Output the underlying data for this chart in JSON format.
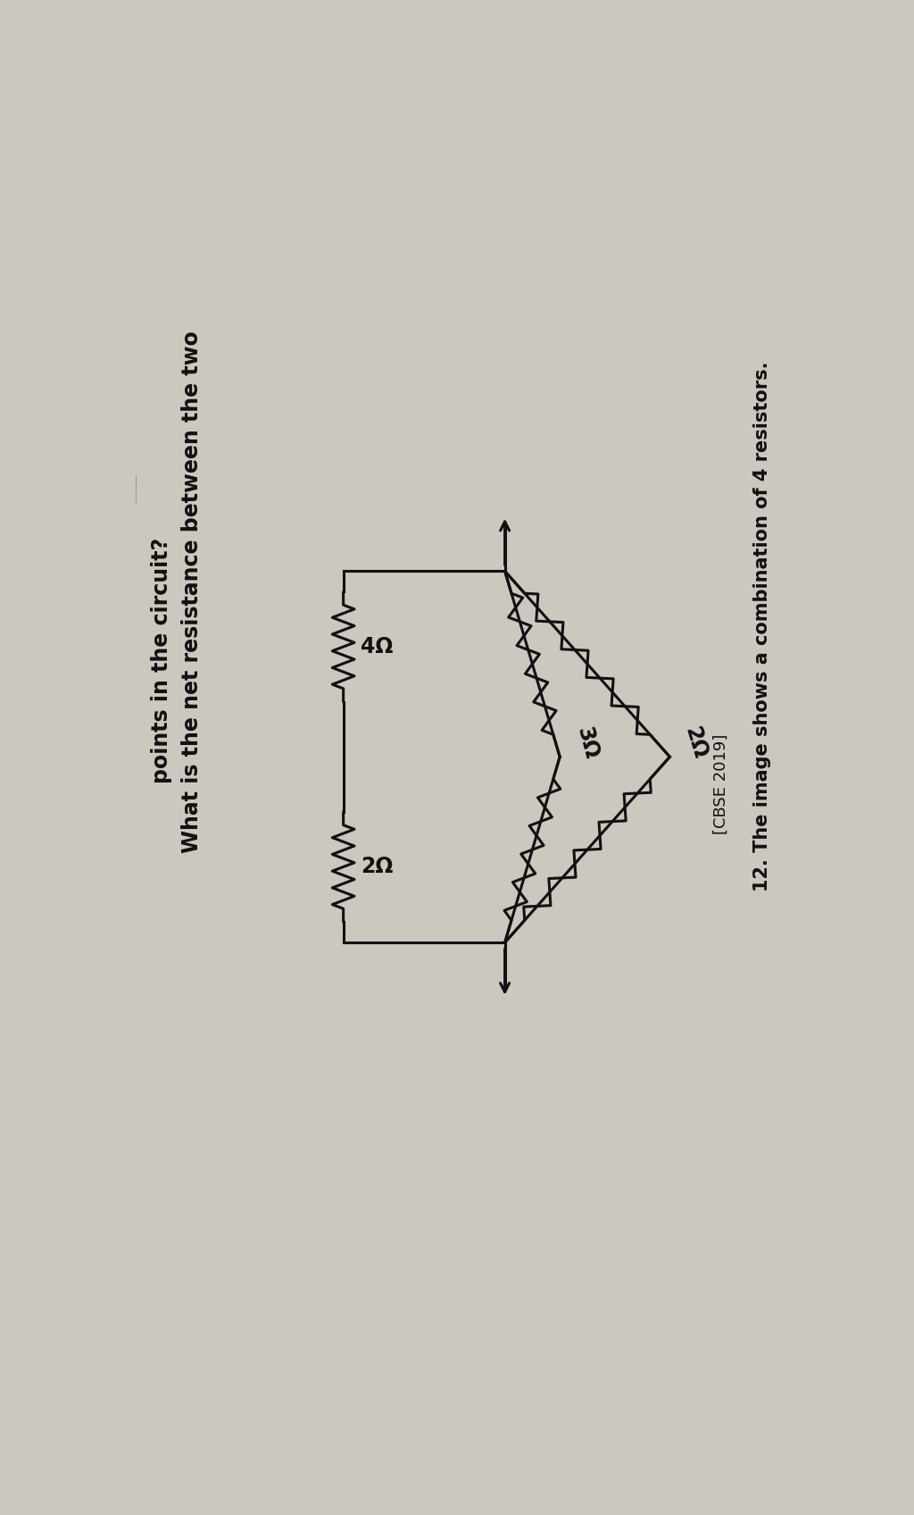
{
  "bg_color": "#ccc8c0",
  "text_color": "#111111",
  "title_text": "12. The image shows a combination of 4 resistors.",
  "cbse_tag": "[CBSE 2019]",
  "q_line1": "What is the net resistance between the two",
  "q_line2": "points in the circuit?",
  "r1_label": "4Ω",
  "r2_label": "2Ω",
  "r3_label": "3Ω",
  "r4_label": "2Ω",
  "line_color": "#111111",
  "line_width": 2.2
}
